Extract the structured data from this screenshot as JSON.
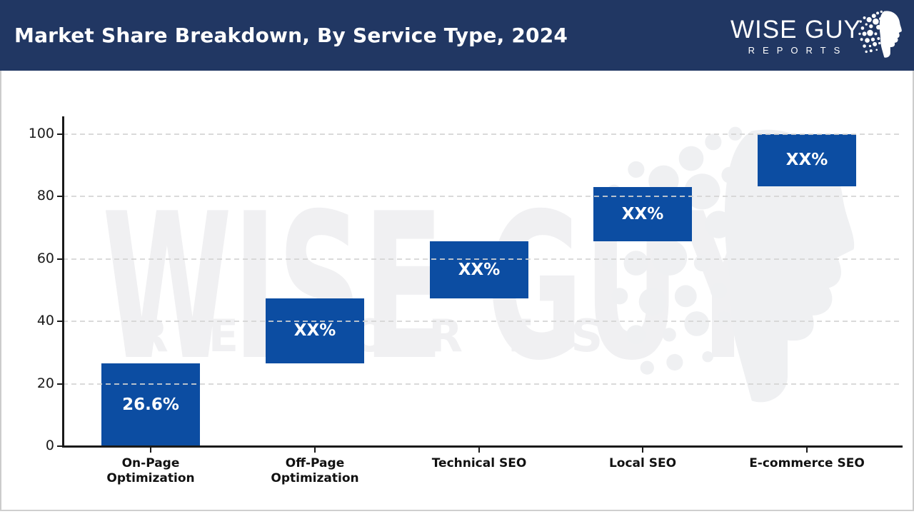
{
  "header": {
    "title": "Market Share Breakdown, By Service Type, 2024",
    "bg_color": "#213763",
    "logo": {
      "name": "WISE GUY",
      "sub": "REPORTS",
      "head_icon": "dotted-head-profile-icon"
    }
  },
  "watermark": {
    "line1": "WISE GUY",
    "line2": "REPORTS"
  },
  "chart_data": {
    "type": "bar",
    "subtype": "waterfall",
    "title": "Market Share Breakdown, By Service Type, 2024",
    "categories": [
      [
        "On-Page",
        "Optimization"
      ],
      [
        "Off-Page",
        "Optimization"
      ],
      [
        "Technical SEO"
      ],
      [
        "Local SEO"
      ],
      [
        "E-commerce SEO"
      ]
    ],
    "series": [
      {
        "name": "Market Share %",
        "segments": [
          {
            "start": 0,
            "end": 26.6,
            "label": "26.6%"
          },
          {
            "start": 26.6,
            "end": 47.3,
            "label": "XX%"
          },
          {
            "start": 47.4,
            "end": 65.6,
            "label": "XX%"
          },
          {
            "start": 65.7,
            "end": 82.9,
            "label": "XX%"
          },
          {
            "start": 83.1,
            "end": 100,
            "label": "XX%"
          }
        ]
      }
    ],
    "y_ticks": [
      0,
      20,
      40,
      60,
      80,
      100
    ],
    "ylim": [
      0,
      105
    ],
    "xlabel": "",
    "ylabel": "",
    "bar_color": "#0C4DA2",
    "bar_label_color": "#ffffff",
    "grid": "horizontal-dashed",
    "legend": "none"
  }
}
